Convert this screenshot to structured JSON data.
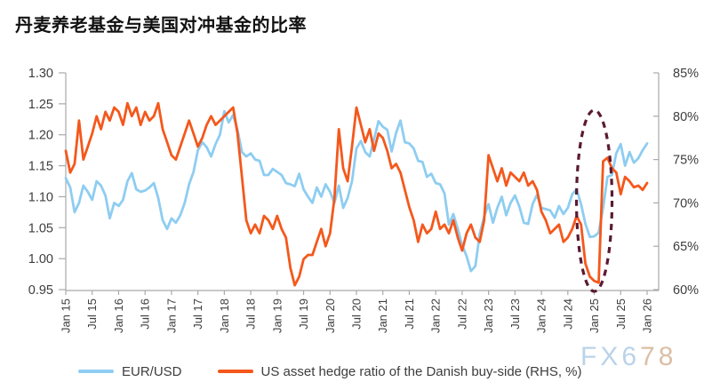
{
  "title": "丹麦养老基金与美国对冲基金的比率",
  "watermark": {
    "part1": "FX6",
    "part2": "78"
  },
  "legend": [
    {
      "label": "EUR/USD",
      "color": "#8ECDF1"
    },
    {
      "label": "US asset hedge ratio of the Danish buy-side (RHS, %)",
      "color": "#F4581C"
    }
  ],
  "chart_data": {
    "type": "line",
    "title": "丹麦养老基金与美国对冲基金的比率",
    "grid": false,
    "background": "#ffffff",
    "x_unit": "month",
    "x_range": [
      "Jan 15",
      "Jan 26"
    ],
    "x_tick_labels": [
      "Jan 15",
      "Jul 15",
      "Jan 16",
      "Jul 16",
      "Jan 17",
      "Jul 17",
      "Jan 18",
      "Jul 18",
      "Jan 19",
      "Jul 19",
      "Jan 20",
      "Jul 20",
      "Jan 21",
      "Jul 21",
      "Jan 22",
      "Jul 22",
      "Jan 23",
      "Jul 23",
      "Jan 24",
      "Jul 24",
      "Jan 25",
      "Jul 25",
      "Jan 26"
    ],
    "x_tick_label_rotation_deg": -90,
    "left_axis": {
      "min": 0.95,
      "max": 1.3,
      "ticks": [
        1.3,
        1.25,
        1.2,
        1.15,
        1.1,
        1.05,
        1.0,
        0.95
      ],
      "format": "2dp"
    },
    "right_axis": {
      "min": 60,
      "max": 85,
      "ticks": [
        85,
        80,
        75,
        70,
        65,
        60
      ],
      "format": "percent"
    },
    "series": [
      {
        "name": "EUR/USD",
        "axis": "left",
        "color": "#8ECDF1",
        "values": [
          1.13,
          1.115,
          1.075,
          1.09,
          1.118,
          1.108,
          1.095,
          1.125,
          1.118,
          1.102,
          1.065,
          1.09,
          1.085,
          1.095,
          1.125,
          1.138,
          1.112,
          1.108,
          1.11,
          1.115,
          1.122,
          1.098,
          1.062,
          1.048,
          1.065,
          1.058,
          1.07,
          1.09,
          1.12,
          1.14,
          1.175,
          1.188,
          1.18,
          1.165,
          1.185,
          1.2,
          1.238,
          1.22,
          1.232,
          1.208,
          1.172,
          1.165,
          1.17,
          1.16,
          1.158,
          1.135,
          1.135,
          1.145,
          1.14,
          1.135,
          1.122,
          1.12,
          1.117,
          1.137,
          1.112,
          1.1,
          1.09,
          1.115,
          1.1,
          1.12,
          1.108,
          1.09,
          1.118,
          1.082,
          1.098,
          1.125,
          1.178,
          1.19,
          1.172,
          1.165,
          1.193,
          1.222,
          1.213,
          1.208,
          1.173,
          1.203,
          1.223,
          1.188,
          1.186,
          1.178,
          1.158,
          1.156,
          1.132,
          1.137,
          1.122,
          1.12,
          1.105,
          1.055,
          1.072,
          1.048,
          1.022,
          1.004,
          0.98,
          0.988,
          1.04,
          1.068,
          1.088,
          1.058,
          1.082,
          1.1,
          1.07,
          1.09,
          1.102,
          1.084,
          1.058,
          1.056,
          1.088,
          1.103,
          1.082,
          1.08,
          1.078,
          1.066,
          1.085,
          1.072,
          1.082,
          1.104,
          1.112,
          1.088,
          1.056,
          1.035,
          1.036,
          1.042,
          1.082,
          1.132,
          1.135,
          1.17,
          1.185,
          1.15,
          1.172,
          1.155,
          1.162,
          1.175,
          1.186
        ]
      },
      {
        "name": "US asset hedge ratio of the Danish buy-side (RHS, %)",
        "axis": "right",
        "color": "#F4581C",
        "values": [
          76.0,
          73.5,
          74.5,
          79.5,
          75.0,
          76.5,
          78.0,
          80.0,
          78.5,
          80.5,
          79.5,
          81.0,
          80.5,
          79.0,
          81.5,
          80.0,
          81.0,
          79.0,
          80.5,
          79.5,
          80.0,
          81.5,
          78.5,
          77.0,
          75.5,
          75.0,
          76.5,
          78.0,
          79.5,
          78.0,
          76.5,
          77.5,
          79.0,
          80.0,
          79.0,
          79.5,
          80.0,
          80.5,
          81.0,
          78.0,
          73.0,
          68.0,
          66.5,
          67.5,
          66.5,
          68.5,
          68.0,
          67.0,
          68.5,
          67.0,
          66.0,
          62.5,
          60.5,
          61.5,
          63.5,
          64.0,
          64.0,
          65.5,
          67.0,
          65.0,
          66.5,
          70.5,
          78.5,
          74.0,
          72.5,
          76.5,
          81.0,
          79.0,
          77.0,
          78.5,
          76.0,
          78.0,
          77.5,
          76.0,
          74.0,
          74.5,
          73.5,
          71.5,
          69.5,
          68.0,
          65.5,
          67.5,
          66.5,
          67.0,
          69.0,
          67.0,
          67.5,
          66.5,
          68.0,
          66.0,
          64.5,
          66.5,
          67.5,
          66.0,
          65.5,
          68.0,
          75.5,
          74.0,
          72.5,
          74.0,
          72.0,
          73.5,
          73.0,
          72.5,
          73.5,
          72.0,
          72.5,
          71.5,
          69.0,
          68.0,
          66.5,
          67.0,
          67.5,
          65.5,
          66.0,
          67.0,
          68.5,
          67.5,
          63.0,
          61.5,
          61.0,
          60.8,
          74.8,
          75.2,
          74.0,
          73.5,
          71.0,
          73.0,
          72.5,
          71.8,
          72.0,
          71.5,
          72.3
        ]
      }
    ],
    "annotation": {
      "shape": "dashed-ellipse",
      "x_label": "Jan 25",
      "x_month_index": 120,
      "color": "#5A1A33"
    }
  }
}
